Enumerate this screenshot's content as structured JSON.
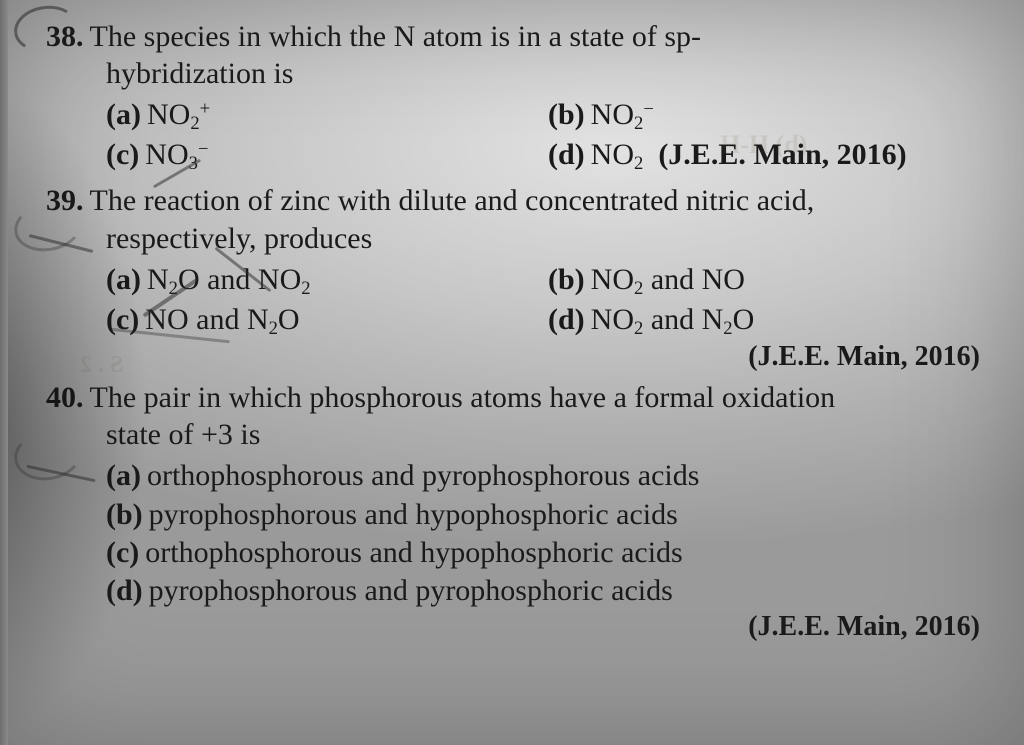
{
  "questions": [
    {
      "num": "38.",
      "stem_html": "The species in which the N atom is in a state of sp-<br>hybridization is",
      "options": [
        {
          "lbl": "(a)",
          "html": "NO<sub>2</sub><sup>+</sup>"
        },
        {
          "lbl": "(b)",
          "html": "NO<sub>2</sub><sup>&minus;</sup>"
        },
        {
          "lbl": "(c)",
          "html": "NO<sub>3</sub><sup>&minus;</sup>"
        },
        {
          "lbl": "(d)",
          "html": "NO<sub>2</sub>&nbsp;&nbsp;<span style='font-weight:700'>(J.E.E. Main, 2016)</span>"
        }
      ],
      "full": false
    },
    {
      "num": "39.",
      "stem_html": "The reaction of zinc with dilute and concentrated nitric acid,<br>respectively, produces",
      "options": [
        {
          "lbl": "(a)",
          "html": "N<sub>2</sub>O and NO<sub>2</sub>"
        },
        {
          "lbl": "(b)",
          "html": "NO<sub>2</sub> and NO"
        },
        {
          "lbl": "(c)",
          "html": "NO and N<sub>2</sub>O"
        },
        {
          "lbl": "(d)",
          "html": "NO<sub>2</sub> and N<sub>2</sub>O"
        }
      ],
      "full": false,
      "source": "(J.E.E. Main, 2016)"
    },
    {
      "num": "40.",
      "stem_html": "The pair in which phosphorous atoms have a formal oxidation<br>state of +3 is",
      "options": [
        {
          "lbl": "(a)",
          "html": "orthophosphorous and pyrophosphorous acids"
        },
        {
          "lbl": "(b)",
          "html": "pyrophosphorous and hypophosphoric acids"
        },
        {
          "lbl": "(c)",
          "html": "orthophosphorous and hypophosphoric acids"
        },
        {
          "lbl": "(d)",
          "html": "pyrophosphorous and pyrophosphoric acids"
        }
      ],
      "full": true,
      "source": "(J.E.E. Main, 2016)"
    }
  ]
}
